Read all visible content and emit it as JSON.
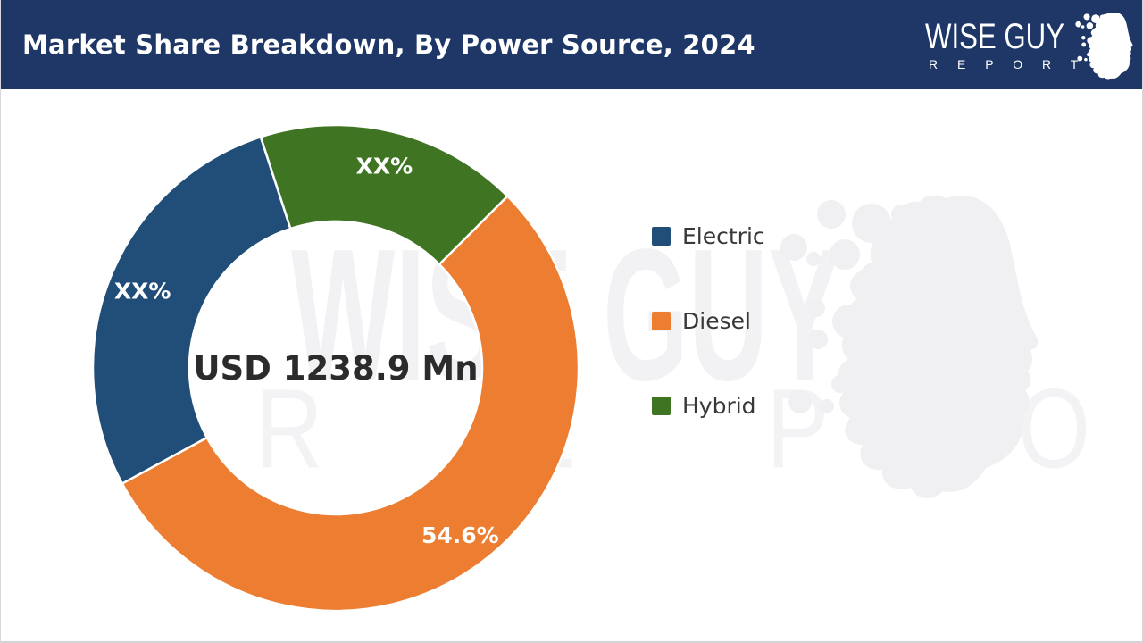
{
  "header": {
    "title": "Market Share Breakdown, By Power Source, 2024",
    "bg_color": "#1e3766",
    "logo": {
      "line1": "WISE GUY",
      "line2": "R E P O R T S"
    }
  },
  "chart_data": {
    "type": "donut",
    "title": "Market Share Breakdown, By Power Source, 2024",
    "center_label": "USD 1238.9 Mn",
    "start_angle_deg_clockwise_from_top": -18,
    "direction": "counterclockwise",
    "legend_position": "right",
    "outer_radius_px": 272,
    "inner_radius_px": 164,
    "segments": [
      {
        "label": "Electric",
        "value_pct": 27.9,
        "display_label": "XX%",
        "color": "#204e78"
      },
      {
        "label": "Diesel",
        "value_pct": 54.6,
        "display_label": "54.6%",
        "color": "#ed7d31"
      },
      {
        "label": "Hybrid",
        "value_pct": 17.5,
        "display_label": "XX%",
        "color": "#3f7522"
      }
    ]
  },
  "watermark": {
    "line1": "WISE GUY",
    "line2": "R E P O R T S"
  }
}
